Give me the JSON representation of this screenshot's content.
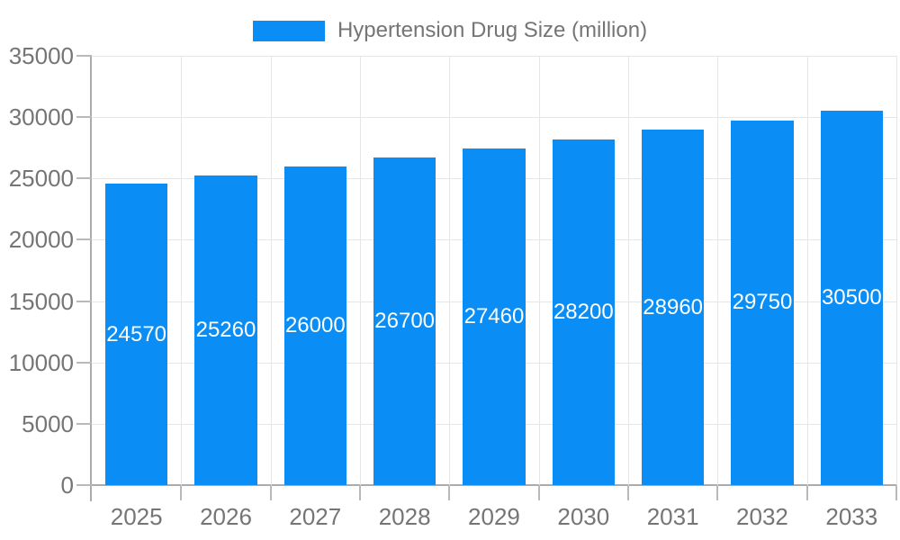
{
  "legend": {
    "label": "Hypertension Drug Size (million)"
  },
  "chart_data": {
    "type": "bar",
    "title": "Hypertension Drug Size (million)",
    "categories": [
      "2025",
      "2026",
      "2027",
      "2028",
      "2029",
      "2030",
      "2031",
      "2032",
      "2033"
    ],
    "values": [
      24570,
      25260,
      26000,
      26700,
      27460,
      28200,
      28960,
      29750,
      30500
    ],
    "series": [
      {
        "name": "Hypertension Drug Size (million)",
        "values": [
          24570,
          25260,
          26000,
          26700,
          27460,
          28200,
          28960,
          29750,
          30500
        ]
      }
    ],
    "xlabel": "",
    "ylabel": "",
    "ylim": [
      0,
      35000
    ],
    "yticks": [
      0,
      5000,
      10000,
      15000,
      20000,
      25000,
      30000,
      35000
    ],
    "grid": true,
    "legend_position": "top",
    "value_labels": "inside-center",
    "colors": {
      "bar": "#0a8df5",
      "value_label": "#ffffff",
      "axis_text": "#757575",
      "grid_line": "#e6e6e6",
      "axis_line": "#ababab",
      "tick_line": "#b9b9b9",
      "background": "#ffffff"
    }
  }
}
